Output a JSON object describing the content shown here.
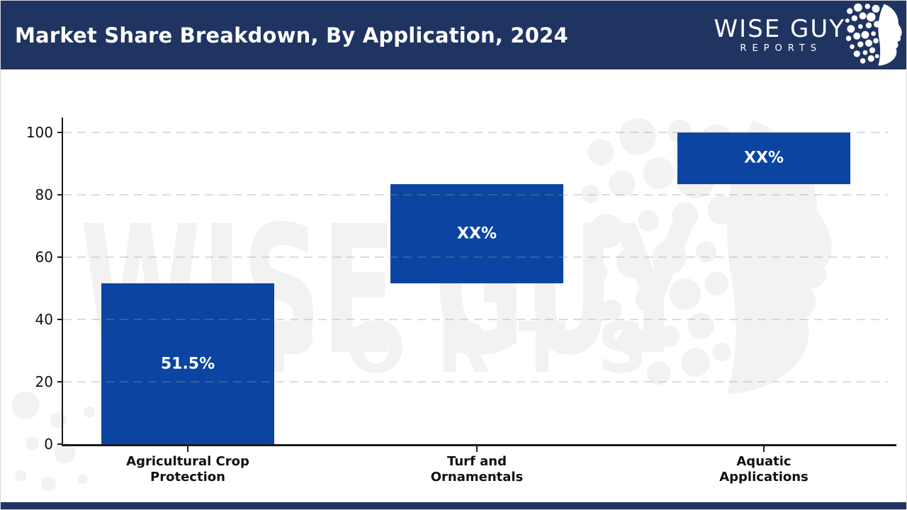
{
  "header": {
    "title": "Market Share Breakdown, By Application, 2024",
    "logo": {
      "wordmark": "WISE GUY",
      "subtext": "REPORTS"
    }
  },
  "watermark": {
    "line1": "WISE GUY",
    "line2": "REPORTS"
  },
  "chart_data": {
    "type": "bar",
    "subtype": "floating-segment-waterfall",
    "title": "Market Share Breakdown, By Application, 2024",
    "categories": [
      "Agricultural Crop Protection",
      "Turf and Ornamentals",
      "Aquatic Applications"
    ],
    "category_label_lines": [
      [
        "Agricultural Crop",
        "Protection"
      ],
      [
        "Turf and",
        "Ornamentals"
      ],
      [
        "Aquatic",
        "Applications"
      ]
    ],
    "segments": [
      {
        "category": "Agricultural Crop Protection",
        "start": 0,
        "end": 51.5,
        "value_label": "51.5%"
      },
      {
        "category": "Turf and Ornamentals",
        "start": 51.5,
        "end": 83.5,
        "value_label": "XX%"
      },
      {
        "category": "Aquatic Applications",
        "start": 83.5,
        "end": 100,
        "value_label": "XX%"
      }
    ],
    "yticks": [
      0,
      20,
      40,
      60,
      80,
      100
    ],
    "ylim": [
      0,
      105
    ],
    "grid": "horizontal-dashed",
    "legend": "none",
    "xlabel": "",
    "ylabel": ""
  },
  "colors": {
    "header_bg": "#203462",
    "bar": "#0b45a1",
    "bar_label": "#ffffff",
    "axis": "#1a1a1a",
    "grid": "#d8d8d8",
    "watermark": "#f2f2f2"
  }
}
